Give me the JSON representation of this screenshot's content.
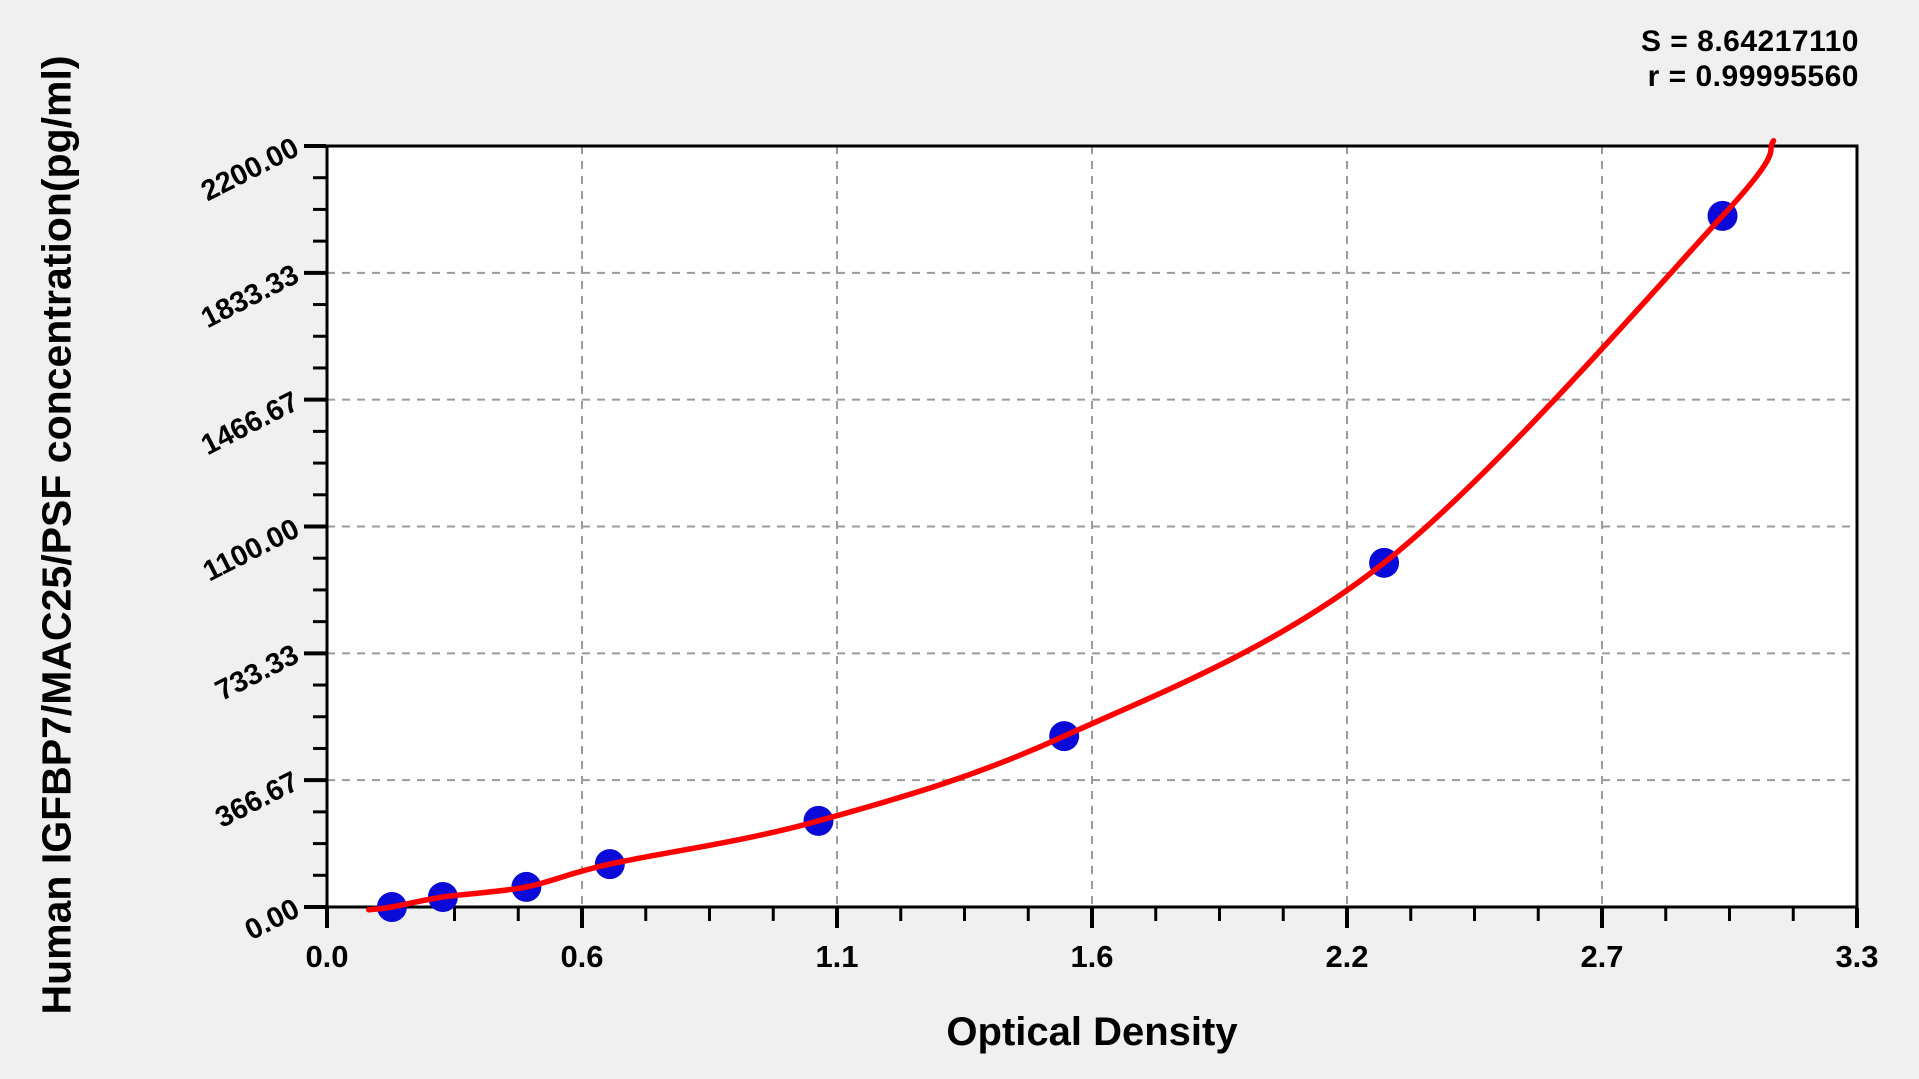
{
  "annotation": {
    "s_line": "S = 8.64217110",
    "r_line": "r = 0.99995560"
  },
  "chart_data": {
    "type": "scatter",
    "title": "",
    "xlabel": "Optical Density",
    "ylabel": "Human IGFBP7/MAC25/PSF concentration(pg/ml)",
    "xlim": [
      0,
      3.3
    ],
    "ylim": [
      0,
      2200
    ],
    "x_tick_labels": [
      "0.0",
      "0.6",
      "1.1",
      "1.6",
      "2.2",
      "2.7",
      "3.3"
    ],
    "x_tick_values": [
      0,
      0.55,
      1.1,
      1.65,
      2.2,
      2.75,
      3.3
    ],
    "y_tick_labels": [
      "0.00",
      "366.67",
      "733.33",
      "1100.00",
      "1466.67",
      "1833.33",
      "2200.00"
    ],
    "y_tick_values": [
      0,
      366.67,
      733.33,
      1100,
      1466.67,
      1833.33,
      2200
    ],
    "minor_ticks_per_interval": 3,
    "grid": "dashed gray lines at interior major ticks",
    "legend_position": "none",
    "series": [
      {
        "name": "standard-points",
        "type": "scatter",
        "points": [
          {
            "od": 0.14,
            "conc": 0
          },
          {
            "od": 0.25,
            "conc": 29
          },
          {
            "od": 0.43,
            "conc": 58
          },
          {
            "od": 0.61,
            "conc": 124
          },
          {
            "od": 1.06,
            "conc": 249
          },
          {
            "od": 1.59,
            "conc": 494
          },
          {
            "od": 2.28,
            "conc": 995
          },
          {
            "od": 3.01,
            "conc": 1998
          }
        ]
      },
      {
        "name": "fitted-curve",
        "type": "line",
        "curve_start": {
          "od": 0.09,
          "conc": -8
        },
        "curve_end": {
          "od": 3.12,
          "conc": 2215
        }
      }
    ],
    "colors": {
      "point": "#0a0ad9",
      "curve": "#ff0000",
      "grid": "#9b9b9b",
      "axis": "#000000",
      "plot_background": "#ffffff",
      "page_background": "#f0f0f0"
    }
  }
}
